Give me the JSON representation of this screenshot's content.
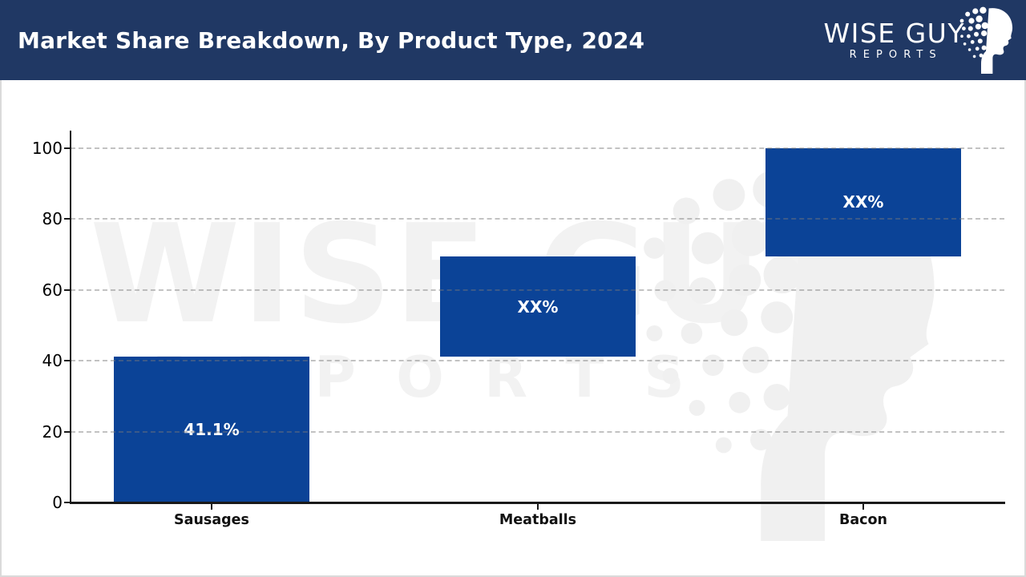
{
  "header": {
    "title": "Market Share Breakdown, By Product Type, 2024",
    "logo": {
      "name": "WISE GUY",
      "subtext": "REPORTS"
    }
  },
  "watermark": {
    "name": "WISE GUY",
    "subtext": "REPORTS"
  },
  "colors": {
    "header_bg": "#203864",
    "bar": "#0b4397",
    "bar_label": "#ffffff",
    "axis": "#1a1a1a",
    "gridline": "rgba(120,120,120,0.45)",
    "watermark": "#f2f2f2",
    "frame": "#dadada"
  },
  "chart_data": {
    "type": "bar",
    "subtype": "stacked_segment_columns",
    "title": "Market Share Breakdown, By Product Type, 2024",
    "categories": [
      "Sausages",
      "Meatballs",
      "Bacon"
    ],
    "bars": [
      {
        "category": "Sausages",
        "from": 0,
        "to": 41.1,
        "value_label": "41.1%"
      },
      {
        "category": "Meatballs",
        "from": 41.1,
        "to": 69.5,
        "value_label": "XX%"
      },
      {
        "category": "Bacon",
        "from": 69.5,
        "to": 100,
        "value_label": "XX%"
      }
    ],
    "ylim": [
      0,
      100
    ],
    "yticks": [
      0,
      20,
      40,
      60,
      80,
      100
    ],
    "xlabel": "",
    "ylabel": "",
    "grid": "horizontal-dashed",
    "legend": "none",
    "bar_value_labels_inside": true
  }
}
